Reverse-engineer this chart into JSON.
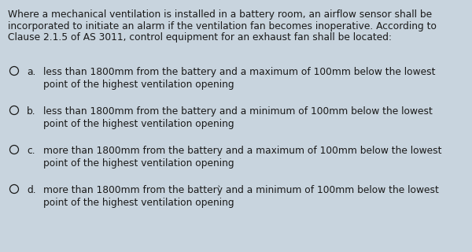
{
  "background_color": "#c8d4de",
  "text_color": "#1a1a1a",
  "intro_lines": [
    "Where a mechanical ventilation is installed in a battery room, an airflow sensor shall be",
    "incorporated to initiate an alarm if the ventilation fan becomes inoperative. According to",
    "Clause 2.1.5 of AS 3011, control equipment for an exhaust fan shall be located:"
  ],
  "options": [
    {
      "label": "a.",
      "line1": "less than 1800mm from the battery and a maximum of 100mm below the lowest",
      "line2": "point of the highest ventilation opening"
    },
    {
      "label": "b.",
      "line1": "less than 1800mm from the battery and a minimum of 100mm below the lowest",
      "line2": "point of the highest ventilation opening"
    },
    {
      "label": "c.",
      "line1": "more than 1800mm from the battery and a maximum of 100mm below the lowest",
      "line2": "point of the highest ventilation opening"
    },
    {
      "label": "d.",
      "line1": "more than 1800mm from the batterỳ and a minimum of 100mm below the lowest",
      "line2": "point of the highest ventilation opening"
    }
  ],
  "intro_fontsize": 8.8,
  "option_fontsize": 8.8,
  "font_family": "DejaVu Sans",
  "fig_width": 6.0,
  "fig_height": 3.2,
  "dpi": 100
}
